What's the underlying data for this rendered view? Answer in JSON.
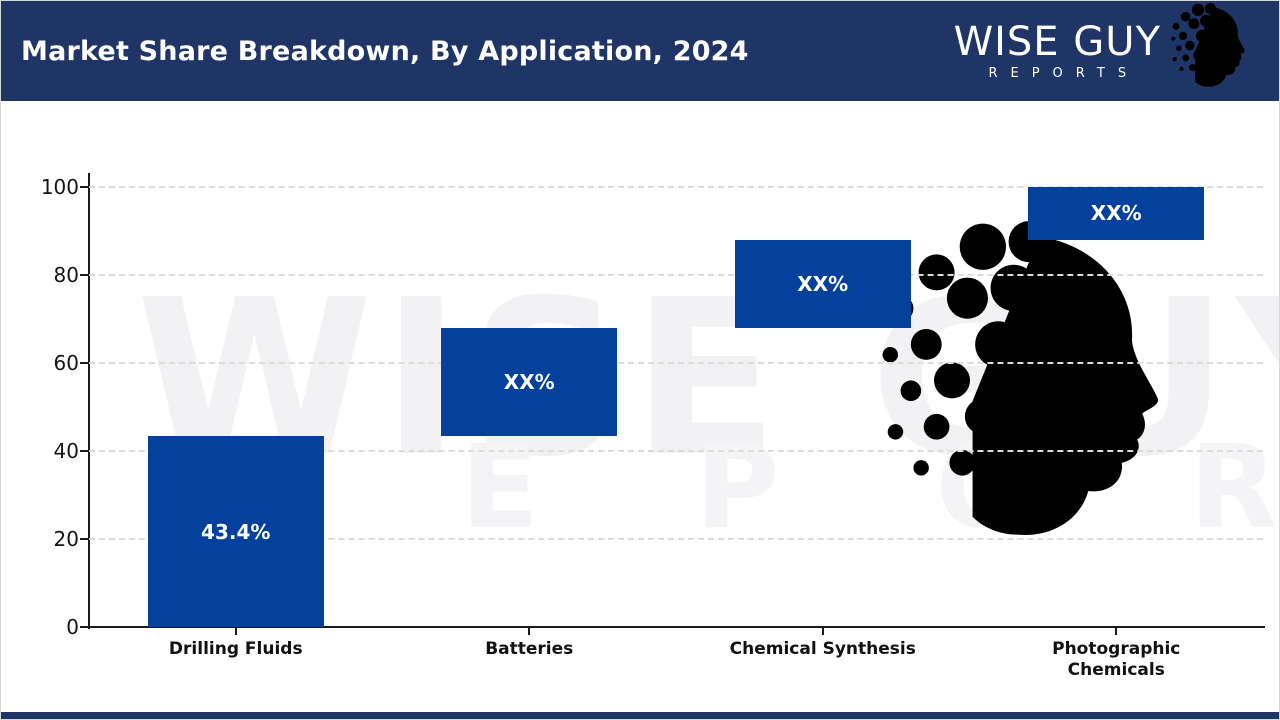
{
  "header": {
    "title": "Market Share Breakdown, By Application, 2024",
    "logo": {
      "line1": "WISE GUY",
      "line2": "REPORTS"
    }
  },
  "watermark": {
    "line1": "WISE GUY",
    "line2": "R E P O R T S"
  },
  "colors": {
    "header_bg": "#1f3565",
    "bar": "#04419c",
    "grid": "#dcdcdc",
    "axis": "#1a1a1a",
    "bar_label": "#ffffff",
    "watermark": "#f2f2f4"
  },
  "chart_data": {
    "type": "bar",
    "subtype": "waterfall",
    "title": "Market Share Breakdown, By Application, 2024",
    "xlabel": "",
    "ylabel": "",
    "ylim": [
      0,
      100
    ],
    "y_ticks": [
      0,
      20,
      40,
      60,
      80,
      100
    ],
    "grid": "horizontal-dashed",
    "categories": [
      "Drilling Fluids",
      "Batteries",
      "Chemical Synthesis",
      "Photographic\nChemicals"
    ],
    "bars": [
      {
        "category": "Drilling Fluids",
        "label": "43.4%",
        "start": 0,
        "end": 43.4
      },
      {
        "category": "Batteries",
        "label": "XX%",
        "start": 43.4,
        "end": 68
      },
      {
        "category": "Chemical Synthesis",
        "label": "XX%",
        "start": 68,
        "end": 88
      },
      {
        "category": "Photographic Chemicals",
        "label": "XX%",
        "start": 88,
        "end": 100
      }
    ]
  }
}
